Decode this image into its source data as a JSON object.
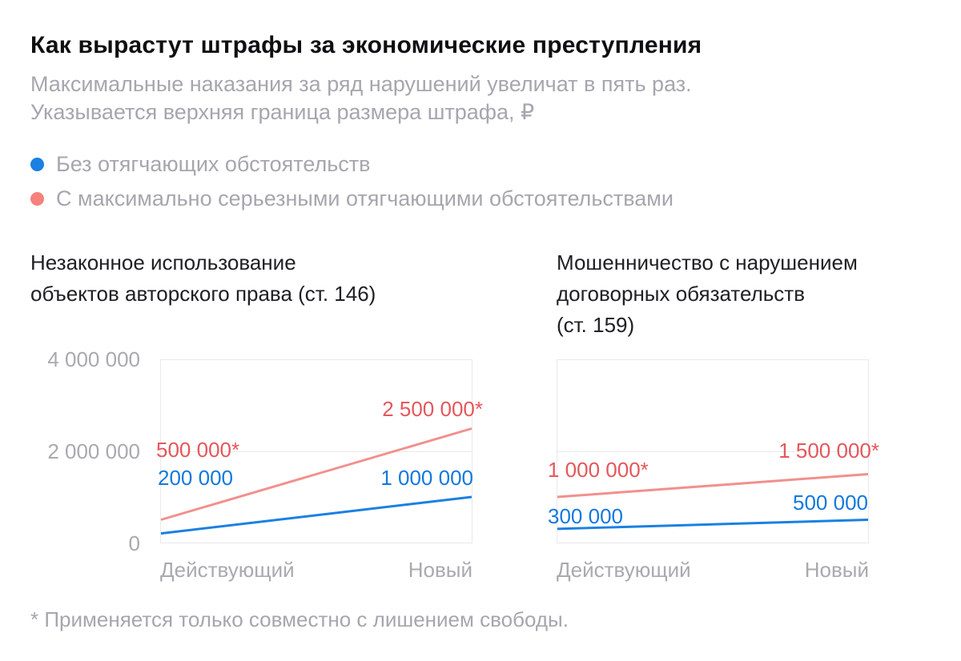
{
  "header": {
    "title": "Как вырастут штрафы за экономические преступления",
    "subtitle_line1": "Максимальные наказания за ряд нарушений увеличат в пять раз.",
    "subtitle_line2": "Указывается верхняя граница размера штрафа, ₽"
  },
  "legend": {
    "items": [
      {
        "label": "Без отягчающих обстоятельств",
        "color": "#1a80e2"
      },
      {
        "label": "С максимально серьезными отягчающими обстоятельствами",
        "color": "#f5827c"
      }
    ]
  },
  "chart_data": [
    {
      "type": "line",
      "title": "Незаконное использование объектов авторского права (ст. 146)",
      "title_lines": [
        "Незаконное использование",
        "объектов авторского права (ст. 146)"
      ],
      "categories": [
        "Действующий",
        "Новый"
      ],
      "ylim": [
        0,
        4000000
      ],
      "yticks": [
        "4 000 000",
        "2 000 000",
        "0"
      ],
      "grid": "horizontal",
      "legend_position": "top",
      "series": [
        {
          "name": "Без отягчающих обстоятельств",
          "values": [
            200000,
            1000000
          ],
          "labels": [
            "200 000",
            "1 000 000"
          ],
          "line_color": "#1a80e2",
          "label_color": "#1279dd"
        },
        {
          "name": "С максимально серьезными отягчающими обстоятельствами",
          "values": [
            500000,
            2500000
          ],
          "labels": [
            "500 000*",
            "2 500 000*"
          ],
          "line_color": "#f1908d",
          "label_color": "#e4575c"
        }
      ]
    },
    {
      "type": "line",
      "title": "Мошенничество с нарушением договорных обязательств (ст. 159)",
      "title_lines": [
        "Мошенничество с нарушением",
        "договорных обязательств",
        "(ст. 159)"
      ],
      "categories": [
        "Действующий",
        "Новый"
      ],
      "ylim": [
        0,
        4000000
      ],
      "grid": "horizontal",
      "legend_position": "top",
      "series": [
        {
          "name": "Без отягчающих обстоятельств",
          "values": [
            300000,
            500000
          ],
          "labels": [
            "300 000",
            "500 000"
          ],
          "line_color": "#1a80e2",
          "label_color": "#1279dd"
        },
        {
          "name": "С максимально серьезными отягчающими обстоятельствами",
          "values": [
            1000000,
            1500000
          ],
          "labels": [
            "1 000 000*",
            "1 500 000*"
          ],
          "line_color": "#f1908d",
          "label_color": "#e4575c"
        }
      ]
    }
  ],
  "footnote": "* Применяется только совместно с лишением свободы."
}
